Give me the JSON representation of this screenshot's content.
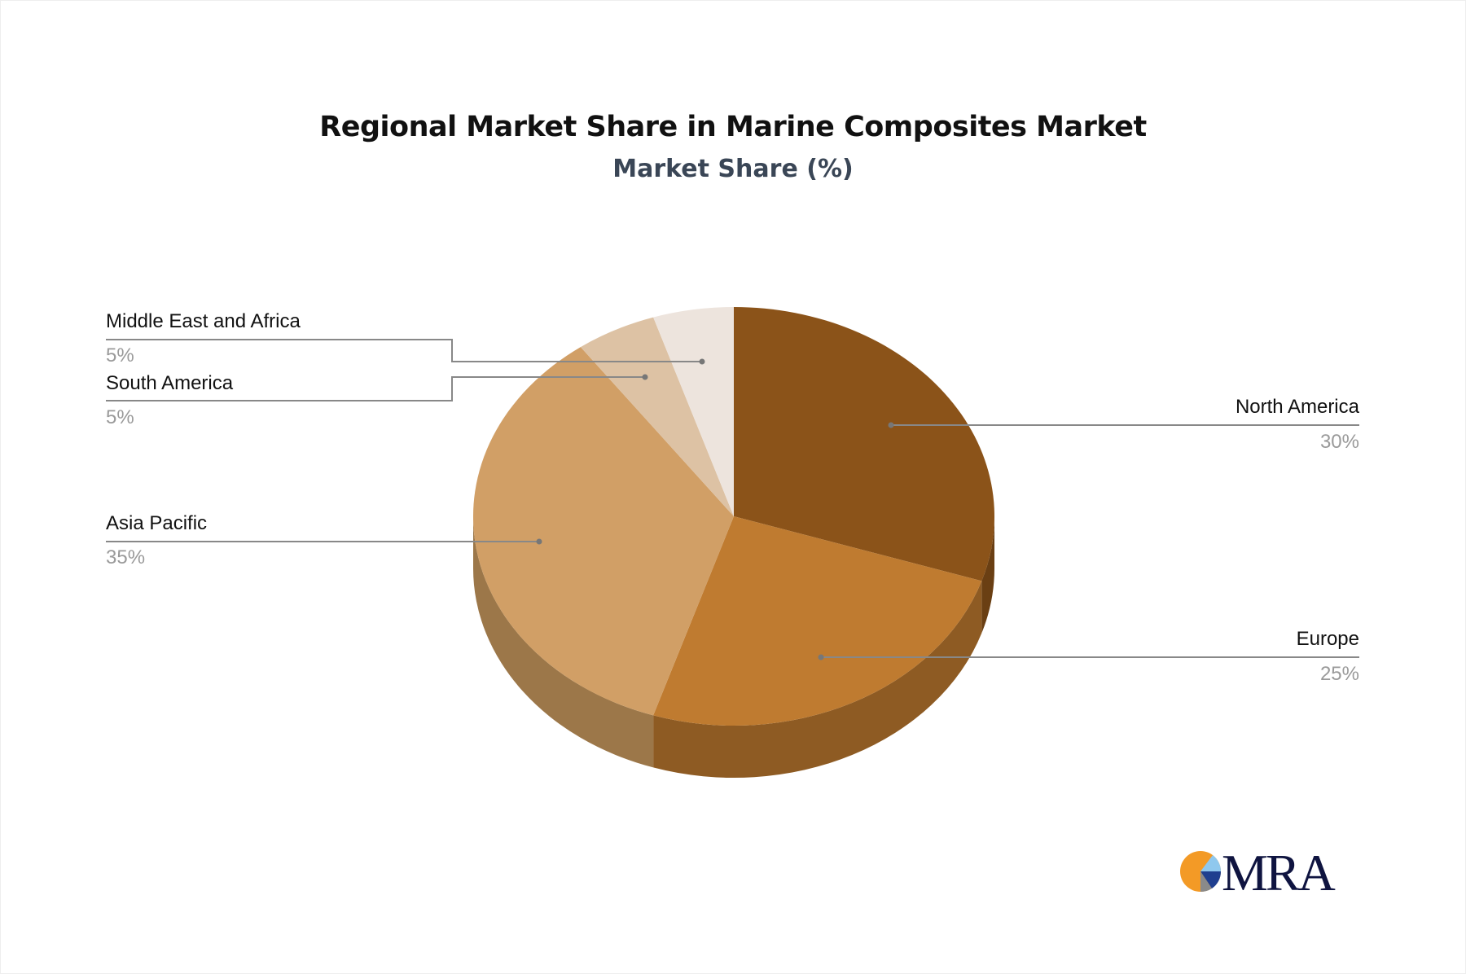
{
  "chart_data": {
    "type": "pie",
    "title": "Regional Market Share in Marine Composites Market",
    "subtitle": "Market Share (%)",
    "style": "3d",
    "slices": [
      {
        "label": "North America",
        "value": 30,
        "value_label": "30%",
        "color": "#8B5319",
        "side_color": "#6A3F13"
      },
      {
        "label": "Europe",
        "value": 25,
        "value_label": "25%",
        "color": "#BF7B30",
        "side_color": "#8E5B23"
      },
      {
        "label": "Asia Pacific",
        "value": 35,
        "value_label": "35%",
        "color": "#D19F66",
        "side_color": "#9C7749"
      },
      {
        "label": "South America",
        "value": 5,
        "value_label": "5%",
        "color": "#DDC2A4",
        "side_color": "#A8927B"
      },
      {
        "label": "Middle East and Africa",
        "value": 5,
        "value_label": "5%",
        "color": "#EDE4DD",
        "side_color": "#B3aba5"
      }
    ]
  },
  "logo": {
    "text": "MRA",
    "colors": [
      "#F39A26",
      "#8FC8EE",
      "#1F3F8F",
      "#8A8A8A",
      "#0F1440"
    ]
  }
}
